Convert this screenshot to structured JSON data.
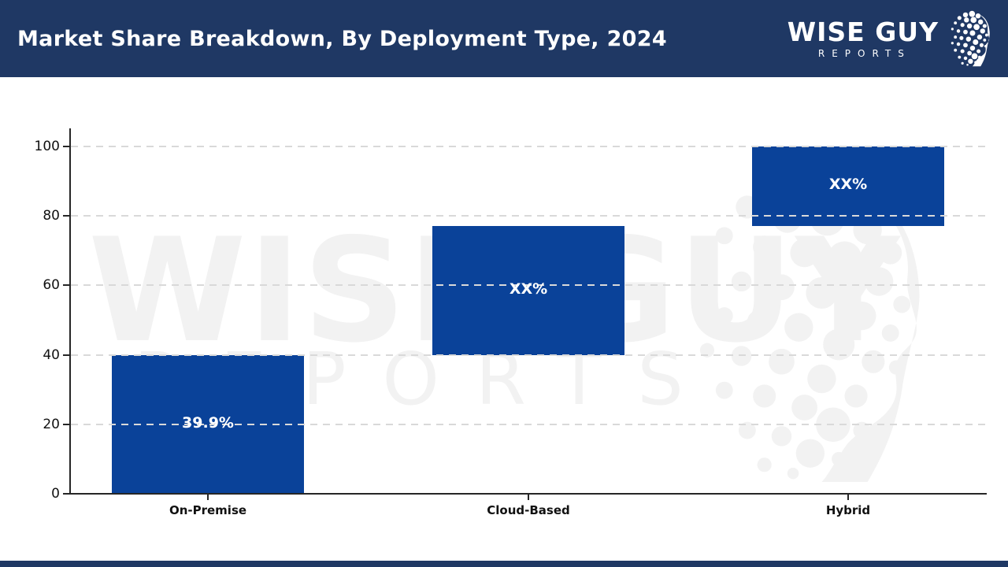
{
  "header": {
    "title": "Market Share Breakdown, By Deployment Type, 2024",
    "logo": {
      "name": "WISE GUY",
      "subtitle": "REPORTS"
    }
  },
  "watermark": {
    "line1": "WISE GUY",
    "line2": "REPORTS"
  },
  "chart_data": {
    "type": "bar",
    "subtype": "waterfall",
    "title": "Market Share Breakdown, By Deployment Type, 2024",
    "categories": [
      "On-Premise",
      "Cloud-Based",
      "Hybrid"
    ],
    "segments": [
      {
        "category": "On-Premise",
        "start": 0,
        "end": 39.9,
        "value": 39.9,
        "label": "39.9%"
      },
      {
        "category": "Cloud-Based",
        "start": 39.9,
        "end": 77.1,
        "value": 37.2,
        "label": "XX%"
      },
      {
        "category": "Hybrid",
        "start": 77.1,
        "end": 100,
        "value": 22.9,
        "label": "XX%"
      }
    ],
    "yticks": [
      0,
      20,
      40,
      60,
      80,
      100
    ],
    "ylim": [
      0,
      105
    ],
    "xlabel": "",
    "ylabel": "",
    "grid": "horizontal-dashed",
    "legend": "none",
    "bar_color": "#0A4299",
    "value_label_color": "#ffffff"
  },
  "colors": {
    "navy": "#1F3864",
    "bar_blue": "#0A4299",
    "gridline": "#D9D9D9",
    "axis": "#262626",
    "watermark": "#F2F2F2"
  }
}
